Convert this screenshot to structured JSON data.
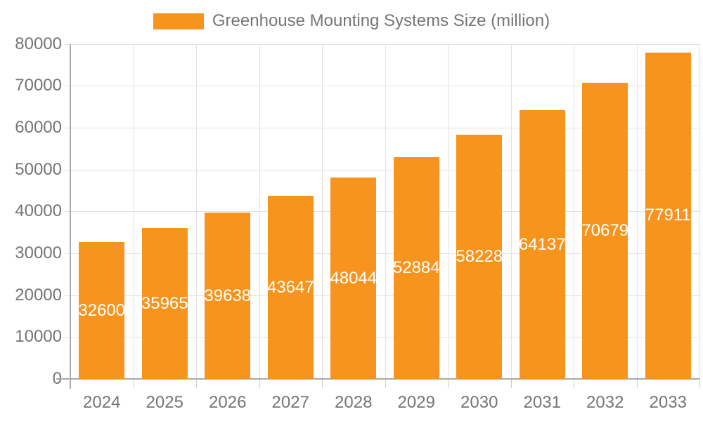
{
  "chart_data": {
    "type": "bar",
    "title": "Greenhouse Mounting Systems Size (million)",
    "series_name": "Greenhouse Mounting Systems Size (million)",
    "categories": [
      "2024",
      "2025",
      "2026",
      "2027",
      "2028",
      "2029",
      "2030",
      "2031",
      "2032",
      "2033"
    ],
    "values": [
      32600,
      35965,
      39638,
      43647,
      48044,
      52884,
      58228,
      64137,
      70679,
      77911
    ],
    "xlabel": "",
    "ylabel": "",
    "ylim": [
      0,
      80000
    ],
    "y_ticks": [
      0,
      10000,
      20000,
      30000,
      40000,
      50000,
      60000,
      70000,
      80000
    ],
    "grid": true,
    "legend_position": "top",
    "value_labels": "inside-center-white"
  },
  "colors": {
    "bar": "#F7941E",
    "bar_value_label": "#ffffff",
    "axis_text": "#757575",
    "legend_text": "#757575",
    "gridline": "#e2e2e2",
    "axis_line": "#aaaaaa",
    "tick": "#cccccc",
    "background": "#ffffff"
  }
}
